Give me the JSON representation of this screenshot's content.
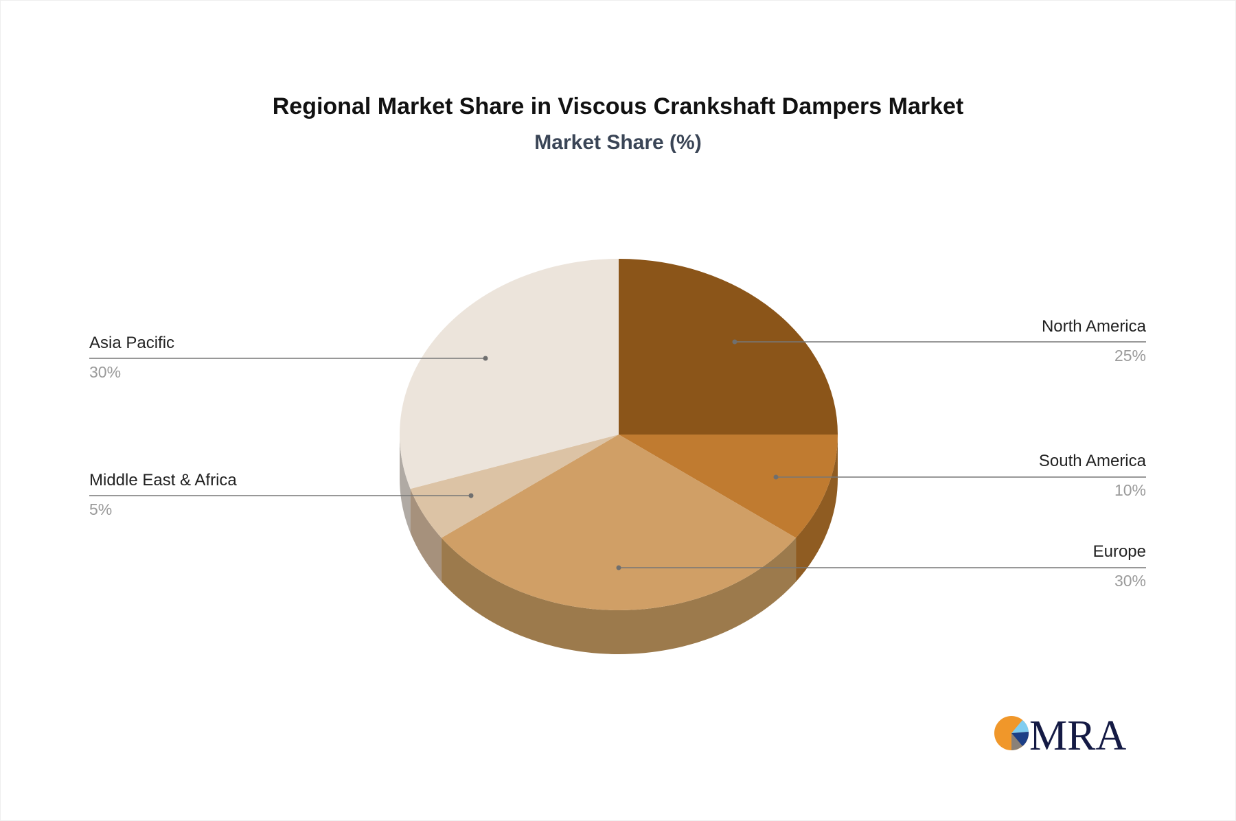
{
  "chart_data": {
    "type": "pie",
    "style": "3d",
    "title": "Regional Market Share in Viscous Crankshaft Dampers Market",
    "subtitle": "Market Share (%)",
    "slices": [
      {
        "label": "North America",
        "value": 25,
        "display": "25%",
        "color": "#8b5519",
        "side": "#8a5820"
      },
      {
        "label": "South America",
        "value": 10,
        "display": "10%",
        "color": "#c07b30",
        "side": "#8f5c22"
      },
      {
        "label": "Europe",
        "value": 30,
        "display": "30%",
        "color": "#d09f66",
        "side": "#9c7a4c"
      },
      {
        "label": "Middle East & Africa",
        "value": 5,
        "display": "5%",
        "color": "#dcc3a5",
        "side": "#a6917c"
      },
      {
        "label": "Asia Pacific",
        "value": 30,
        "display": "30%",
        "color": "#ece4db",
        "side": "#b0aaa4"
      }
    ]
  },
  "logo": {
    "text": "MRA",
    "colors": [
      "#f0972a",
      "#7fcdf0",
      "#1c3f87",
      "#8a8178",
      "#141a44"
    ]
  }
}
